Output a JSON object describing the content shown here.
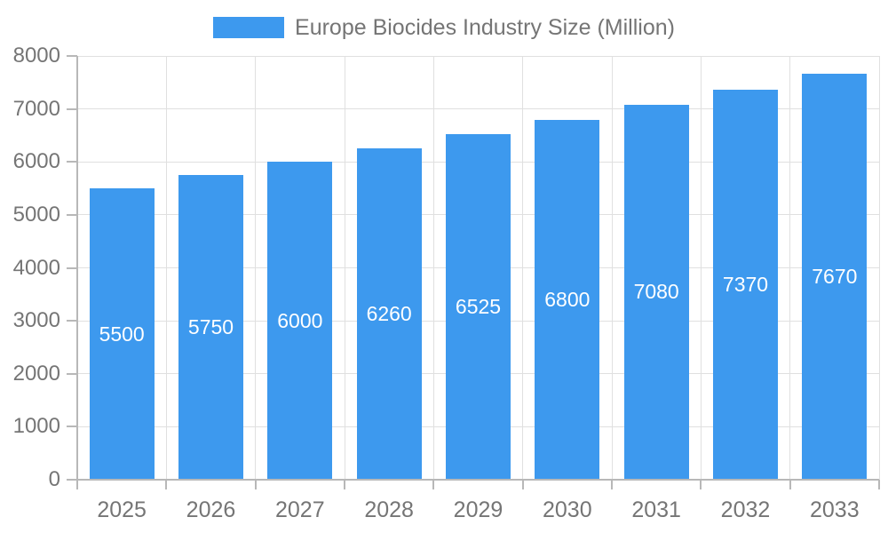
{
  "chart_data": {
    "type": "bar",
    "title": "Europe Biocides Industry Size (Million)",
    "categories": [
      "2025",
      "2026",
      "2027",
      "2028",
      "2029",
      "2030",
      "2031",
      "2032",
      "2033"
    ],
    "values": [
      5500,
      5750,
      6000,
      6260,
      6525,
      6800,
      7080,
      7370,
      7670
    ],
    "value_labels": [
      "5500",
      "5750",
      "6000",
      "6260",
      "6525",
      "6800",
      "7080",
      "7370",
      "7670"
    ],
    "y_tick_labels": [
      "0",
      "1000",
      "2000",
      "3000",
      "4000",
      "5000",
      "6000",
      "7000",
      "8000"
    ],
    "xlabel": "",
    "ylabel": "",
    "ylim": [
      0,
      8000
    ],
    "ytick_step": 1000,
    "grid": true,
    "legend_position": "top-center",
    "value_label_position": "inside-center",
    "colors": {
      "bar": "#3D99EE",
      "value_label": "#FFFFFF",
      "axis_text": "#757575",
      "grid_line": "#E0E0E0",
      "axis_line": "#B8B8B8",
      "background": "#FFFFFF"
    }
  }
}
